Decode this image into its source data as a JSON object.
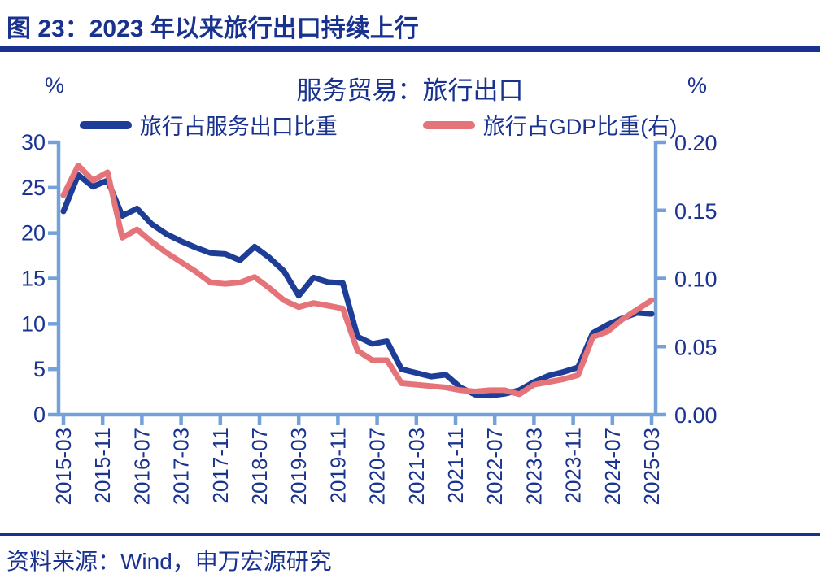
{
  "page": {
    "title": "图 23：2023 年以来旅行出口持续上行",
    "source": "资料来源：Wind，申万宏源研究"
  },
  "chart": {
    "title": "服务贸易：旅行出口",
    "left_unit": "%",
    "right_unit": "%"
  },
  "chart_data": {
    "type": "line",
    "title": "服务贸易：旅行出口",
    "x_start": "2015-03",
    "x_end": "2025-03",
    "point_interval_months": 3,
    "label_interval_months": 8,
    "x_tick_labels": [
      "2015-03",
      "2015-11",
      "2016-07",
      "2017-03",
      "2017-11",
      "2018-07",
      "2019-03",
      "2019-11",
      "2020-07",
      "2021-03",
      "2021-11",
      "2022-07",
      "2023-03",
      "2023-11",
      "2024-07",
      "2025-03"
    ],
    "left_axis": {
      "unit": "%",
      "min": 0,
      "max": 30,
      "ticks": [
        30,
        25,
        20,
        15,
        10,
        5,
        0
      ]
    },
    "right_axis": {
      "unit": "%",
      "min": 0,
      "max": 0.2,
      "ticks": [
        0.2,
        0.15,
        0.1,
        0.05,
        0.0
      ]
    },
    "legend_position": "top",
    "grid": false,
    "series": [
      {
        "name": "旅行占服务出口比重",
        "axis": "left",
        "color": "#1D3D96",
        "values": [
          22.4,
          26.4,
          25.1,
          25.8,
          21.9,
          22.7,
          21.0,
          19.9,
          19.1,
          18.4,
          17.8,
          17.7,
          17.0,
          18.5,
          17.3,
          15.8,
          13.1,
          15.1,
          14.6,
          14.5,
          8.6,
          7.8,
          8.1,
          5.0,
          4.6,
          4.2,
          4.4,
          3.0,
          2.2,
          2.1,
          2.3,
          2.7,
          3.6,
          4.3,
          4.7,
          5.2,
          9.0,
          9.9,
          10.6,
          11.2,
          11.1
        ]
      },
      {
        "name": "旅行占GDP比重(右)",
        "axis": "right",
        "color": "#E5737A",
        "values": [
          0.161,
          0.183,
          0.172,
          0.178,
          0.13,
          0.136,
          0.127,
          0.119,
          0.112,
          0.105,
          0.097,
          0.096,
          0.097,
          0.101,
          0.093,
          0.084,
          0.079,
          0.082,
          0.08,
          0.078,
          0.047,
          0.04,
          0.04,
          0.023,
          0.022,
          0.021,
          0.02,
          0.018,
          0.017,
          0.018,
          0.018,
          0.015,
          0.022,
          0.024,
          0.026,
          0.029,
          0.057,
          0.061,
          0.07,
          0.077,
          0.084
        ]
      }
    ],
    "colors": {
      "axis": "#74A2D8",
      "text": "#1A3490",
      "title_rule": "#19328F"
    }
  }
}
